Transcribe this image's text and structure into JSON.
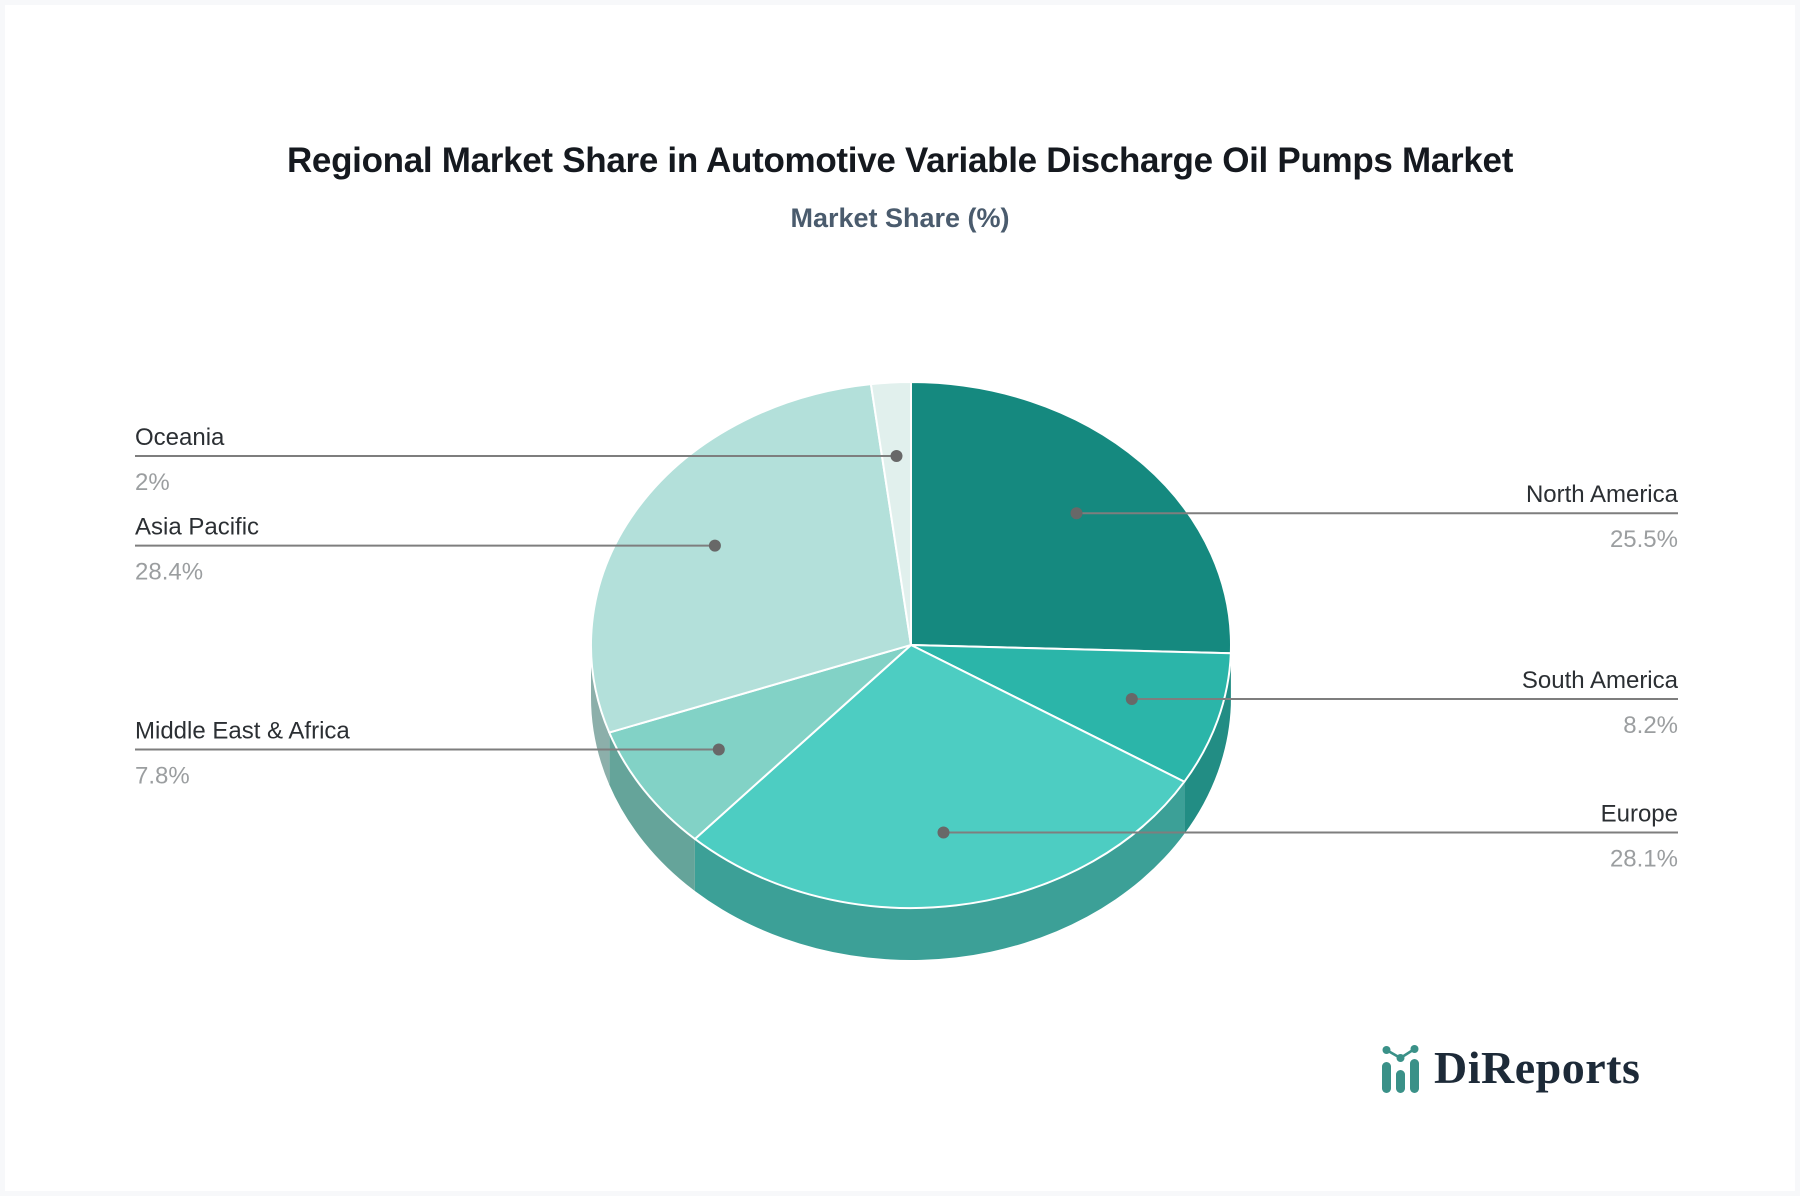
{
  "theme": {
    "page_background": "#f7f8fa",
    "card_background": "#ffffff",
    "title_color": "#15191f",
    "subtitle_color": "#4a5b6d",
    "label_name_color": "#2b2f33",
    "label_value_color": "#9b9ea0",
    "leader_line_color": "#7e7e7e",
    "leader_dot_color": "#686868",
    "logo_text_color": "#1d2a38",
    "logo_icon_color": "#3a9188"
  },
  "header": {
    "title": "Regional Market Share in Automotive Variable Discharge Oil Pumps Market",
    "subtitle": "Market Share (%)"
  },
  "chart_data": {
    "type": "pie",
    "style": "3d",
    "title": "Regional Market Share in Automotive Variable Discharge Oil Pumps Market",
    "subtitle": "Market Share (%)",
    "unit": "%",
    "start_angle_deg": 0,
    "direction": "clockwise",
    "categories": [
      "North America",
      "South America",
      "Europe",
      "Middle East & Africa",
      "Asia Pacific",
      "Oceania"
    ],
    "values": [
      25.5,
      8.2,
      28.1,
      7.8,
      28.4,
      2
    ],
    "display_values": [
      "25.5%",
      "8.2%",
      "28.1%",
      "7.8%",
      "28.4%",
      "2%"
    ],
    "colors": [
      "#15897F",
      "#2BB5A9",
      "#4DCDC2",
      "#82D2C6",
      "#B3E0DA",
      "#E1F0ED"
    ],
    "label_sides": [
      "right",
      "right",
      "right",
      "left",
      "left",
      "left"
    ],
    "legend_position": "callout-labels"
  },
  "branding": {
    "logo_text": "DiReports",
    "logo_icon": "bar-line-chart-icon"
  }
}
